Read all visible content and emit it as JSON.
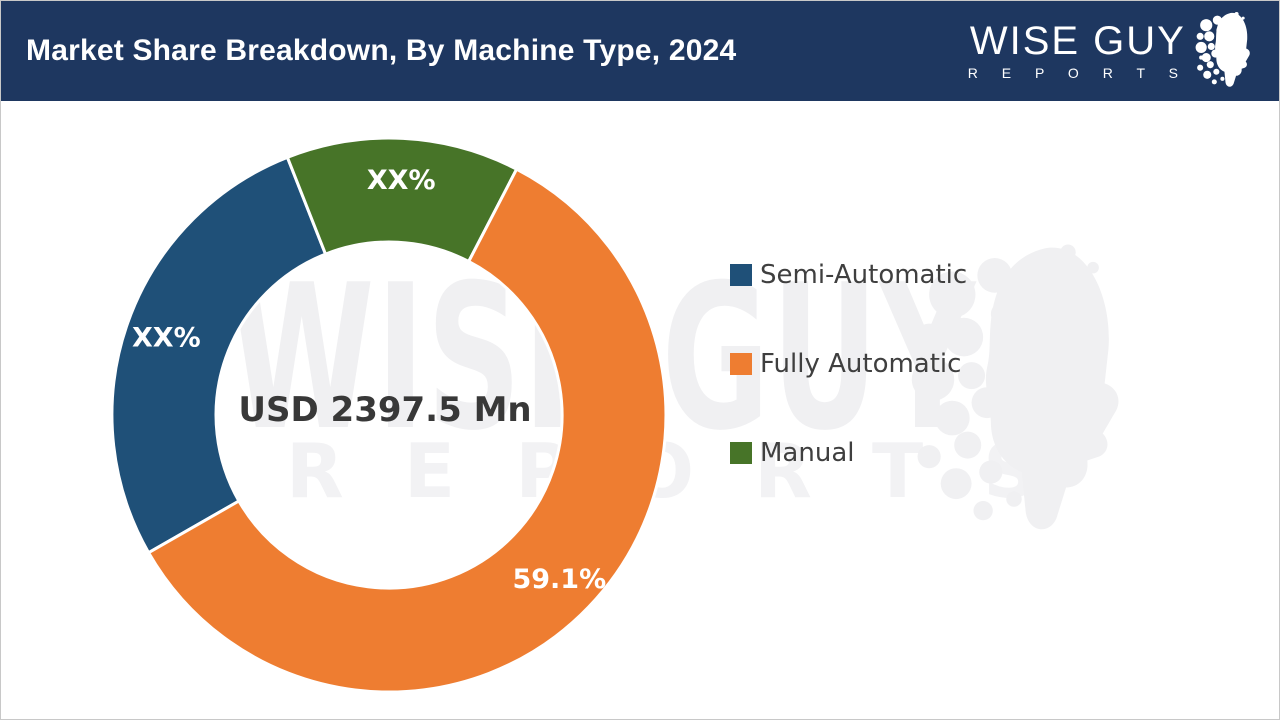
{
  "header": {
    "title": "Market Share Breakdown, By Machine Type, 2024",
    "bg_color": "#1e3760",
    "logo": {
      "line1": "WISE GUY",
      "line2": "R E P O R T S"
    }
  },
  "watermark": {
    "line1": "WISE GUY",
    "line2": "R E P O R T S"
  },
  "chart_data": {
    "type": "pie",
    "subtype": "donut",
    "title": "Market Share Breakdown, By Machine Type, 2024",
    "center_label": "USD 2397.5 Mn",
    "units": "percent of market share",
    "start_angle_deg": 240.2,
    "slices": [
      {
        "label": "Semi-Automatic",
        "value_pct": 27.3,
        "display_label": "XX%",
        "color": "#1f5078"
      },
      {
        "label": "Manual",
        "value_pct": 13.6,
        "display_label": "XX%",
        "color": "#477428"
      },
      {
        "label": "Fully Automatic",
        "value_pct": 59.1,
        "display_label": "59.1%",
        "color": "#ee7d31"
      }
    ],
    "legend_order": [
      "Semi-Automatic",
      "Fully Automatic",
      "Manual"
    ],
    "legend_position": "right",
    "label_color": "#ffffff",
    "slice_separator_color": "#ffffff"
  }
}
